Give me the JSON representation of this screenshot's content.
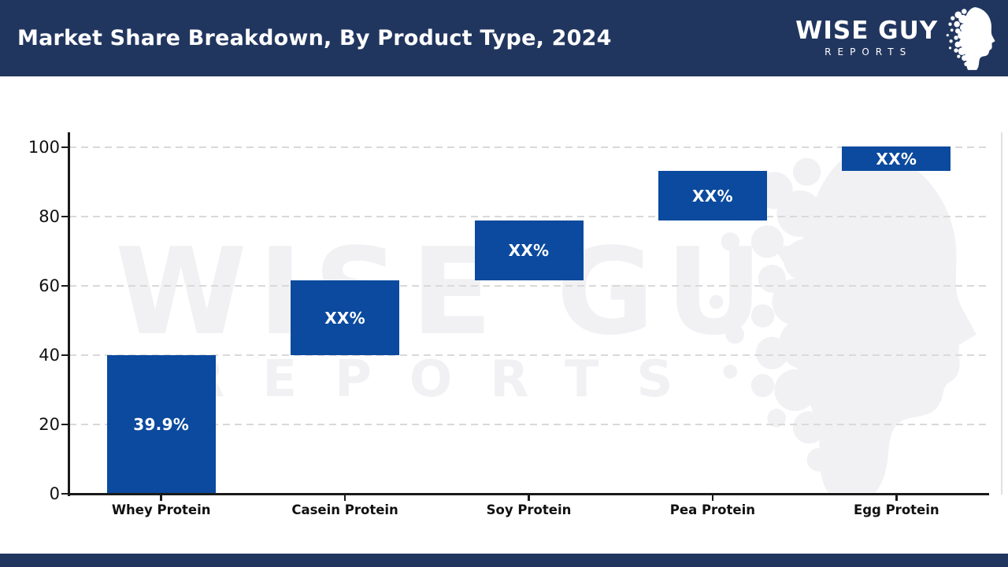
{
  "header": {
    "title": "Market Share Breakdown, By Product Type, 2024"
  },
  "logo": {
    "wordmark": "WISE GUY",
    "subtitle": "REPORTS"
  },
  "watermark": {
    "wordmark": "WISE GUY",
    "subtitle": "REPORTS"
  },
  "colors": {
    "header_navy": "#21365f",
    "footer_navy": "#21365f",
    "bar_blue": "#0b4a9e",
    "axis_black": "#1a1a1a",
    "gridline_gray": "#d9d9d9",
    "watermark_gray": "#f1f1f4",
    "bar_label_white": "#ffffff"
  },
  "chart_data": {
    "type": "bar",
    "subtype": "waterfall",
    "title": "Market Share Breakdown, By Product Type, 2024",
    "categories": [
      "Whey Protein",
      "Casein Protein",
      "Soy Protein",
      "Pea Protein",
      "Egg Protein"
    ],
    "segments": [
      {
        "category": "Whey Protein",
        "start": 0,
        "end": 39.9,
        "value_label": "39.9%"
      },
      {
        "category": "Casein Protein",
        "start": 39.9,
        "end": 61.5,
        "value_label": "XX%"
      },
      {
        "category": "Soy Protein",
        "start": 61.5,
        "end": 78.9,
        "value_label": "XX%"
      },
      {
        "category": "Pea Protein",
        "start": 78.9,
        "end": 93.1,
        "value_label": "XX%"
      },
      {
        "category": "Egg Protein",
        "start": 93.1,
        "end": 100.3,
        "value_label": "XX%"
      }
    ],
    "y_ticks": [
      0,
      20,
      40,
      60,
      80,
      100
    ],
    "ylim": [
      0,
      104
    ],
    "xlabel": "",
    "ylabel": "",
    "grid": "horizontal-dashed",
    "legend": "none",
    "bar_color": "#0b4a9e"
  }
}
